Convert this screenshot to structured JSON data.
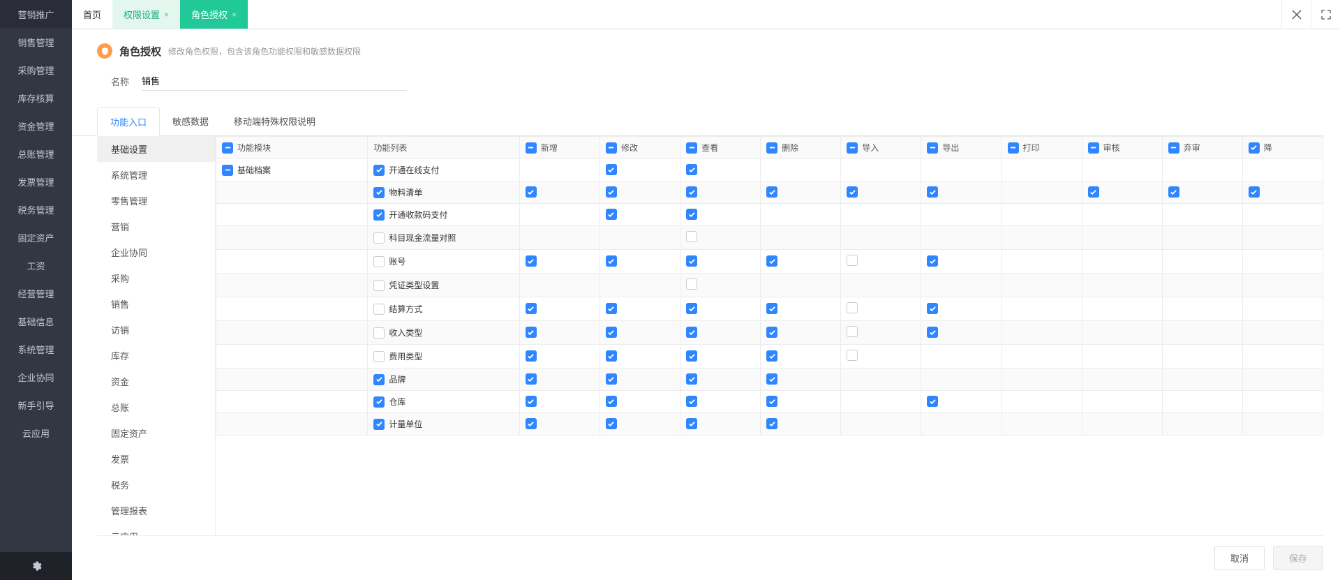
{
  "sidebar": {
    "items": [
      "营销推广",
      "销售管理",
      "采购管理",
      "库存核算",
      "资金管理",
      "总账管理",
      "发票管理",
      "税务管理",
      "固定资产",
      "工资",
      "经营管理",
      "基础信息",
      "系统管理",
      "企业协同",
      "新手引导",
      "云应用"
    ]
  },
  "topTabs": [
    {
      "label": "首页",
      "kind": "plain",
      "closable": false
    },
    {
      "label": "权限设置",
      "kind": "light",
      "closable": true
    },
    {
      "label": "角色授权",
      "kind": "active",
      "closable": true
    }
  ],
  "page": {
    "title": "角色授权",
    "subtitle": "修改角色权限，包含该角色功能权限和敏感数据权限",
    "nameLabel": "名称",
    "nameValue": "销售"
  },
  "subTabs": [
    {
      "label": "功能入口",
      "active": true
    },
    {
      "label": "敏感数据",
      "active": false
    },
    {
      "label": "移动端特殊权限说明",
      "active": false
    }
  ],
  "modules": [
    "基础设置",
    "系统管理",
    "零售管理",
    "营销",
    "企业协同",
    "采购",
    "销售",
    "访销",
    "库存",
    "资金",
    "总账",
    "固定资产",
    "发票",
    "税务",
    "管理报表",
    "云应用"
  ],
  "activeModuleIndex": 0,
  "columns": [
    "功能模块",
    "功能列表",
    "新增",
    "修改",
    "查看",
    "删除",
    "导入",
    "导出",
    "打印",
    "审核",
    "弃审",
    "降"
  ],
  "headerChecks": [
    "minus",
    null,
    "minus",
    "minus",
    "minus",
    "minus",
    "minus",
    "minus",
    "minus",
    "minus",
    "minus",
    "full"
  ],
  "rows": [
    {
      "module": "基础档案",
      "moduleCheck": "minus",
      "func": "开通在线支付",
      "funcCheck": "full",
      "cells": [
        "",
        "full",
        "full",
        "",
        "",
        "",
        "",
        "",
        "",
        ""
      ]
    },
    {
      "module": "",
      "moduleCheck": null,
      "func": "物料清单",
      "funcCheck": "full",
      "cells": [
        "full",
        "full",
        "full",
        "full",
        "full",
        "full",
        "",
        "full",
        "full",
        "full"
      ]
    },
    {
      "module": "",
      "moduleCheck": null,
      "func": "开通收款码支付",
      "funcCheck": "full",
      "cells": [
        "",
        "full",
        "full",
        "",
        "",
        "",
        "",
        "",
        "",
        ""
      ]
    },
    {
      "module": "",
      "moduleCheck": null,
      "func": "科目现金流量对照",
      "funcCheck": "empty",
      "cells": [
        "",
        "",
        "empty",
        "",
        "",
        "",
        "",
        "",
        "",
        ""
      ]
    },
    {
      "module": "",
      "moduleCheck": null,
      "func": "账号",
      "funcCheck": "empty",
      "cells": [
        "full",
        "full",
        "full",
        "full",
        "empty",
        "full",
        "",
        "",
        "",
        ""
      ]
    },
    {
      "module": "",
      "moduleCheck": null,
      "func": "凭证类型设置",
      "funcCheck": "empty",
      "cells": [
        "",
        "",
        "empty",
        "",
        "",
        "",
        "",
        "",
        "",
        ""
      ]
    },
    {
      "module": "",
      "moduleCheck": null,
      "func": "结算方式",
      "funcCheck": "empty",
      "cells": [
        "full",
        "full",
        "full",
        "full",
        "empty",
        "full",
        "",
        "",
        "",
        ""
      ]
    },
    {
      "module": "",
      "moduleCheck": null,
      "func": "收入类型",
      "funcCheck": "empty",
      "cells": [
        "full",
        "full",
        "full",
        "full",
        "empty",
        "full",
        "",
        "",
        "",
        ""
      ]
    },
    {
      "module": "",
      "moduleCheck": null,
      "func": "费用类型",
      "funcCheck": "empty",
      "cells": [
        "full",
        "full",
        "full",
        "full",
        "empty",
        "",
        "",
        "",
        "",
        ""
      ]
    },
    {
      "module": "",
      "moduleCheck": null,
      "func": "品牌",
      "funcCheck": "full",
      "cells": [
        "full",
        "full",
        "full",
        "full",
        "",
        "",
        "",
        "",
        "",
        ""
      ]
    },
    {
      "module": "",
      "moduleCheck": null,
      "func": "仓库",
      "funcCheck": "full",
      "cells": [
        "full",
        "full",
        "full",
        "full",
        "",
        "full",
        "",
        "",
        "",
        ""
      ]
    },
    {
      "module": "",
      "moduleCheck": null,
      "func": "计量单位",
      "funcCheck": "full",
      "cells": [
        "full",
        "full",
        "full",
        "full",
        "",
        "",
        "",
        "",
        "",
        ""
      ]
    }
  ],
  "footer": {
    "cancel": "取消",
    "save": "保存"
  }
}
